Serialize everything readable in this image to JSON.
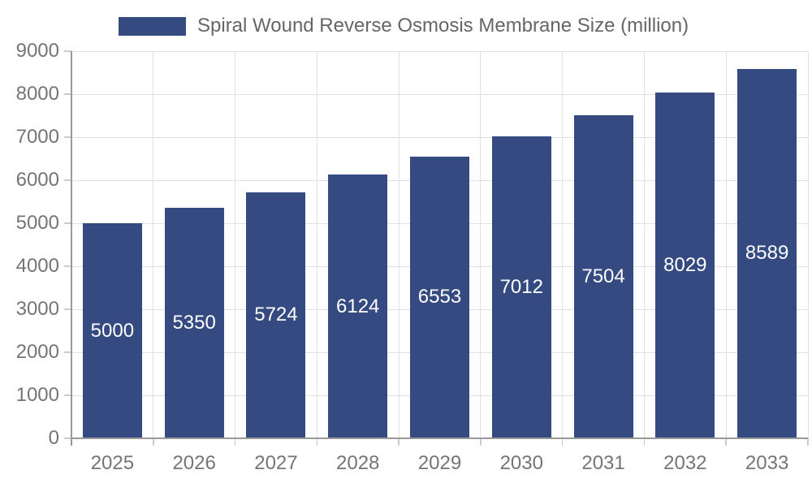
{
  "legend": {
    "label": "Spiral Wound Reverse Osmosis Membrane Size (million)"
  },
  "chart_data": {
    "type": "bar",
    "title": "Spiral Wound Reverse Osmosis Membrane Size (million)",
    "categories": [
      "2025",
      "2026",
      "2027",
      "2028",
      "2029",
      "2030",
      "2031",
      "2032",
      "2033"
    ],
    "values": [
      5000,
      5350,
      5724,
      6124,
      6553,
      7012,
      7504,
      8029,
      8589
    ],
    "xlabel": "",
    "ylabel": "",
    "ylim": [
      0,
      9000
    ],
    "ytick_step": 1000,
    "grid": true,
    "legend_position": "top",
    "value_labels": "inside-center-white",
    "colors": {
      "bar": "#344a80",
      "grid": "#e0e0e0",
      "tick": "#cccccc",
      "axis": "#999999",
      "axis_label": "#757575",
      "value_label": "#ffffff",
      "legend_text": "#666666"
    }
  }
}
